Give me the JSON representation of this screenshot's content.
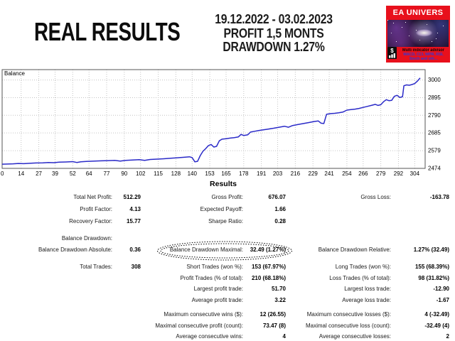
{
  "header": {
    "title": "REAL RESULTS",
    "period_lines": [
      "19.12.2022 - 03.02.2023",
      "PROFIT 1,5 MONTS",
      "DRAWDOWN 1.27%"
    ],
    "logo": {
      "brand": "EA UNIVERS",
      "tagline": "Multi indicator advisor",
      "indicators_line1": "MACD, CCI, WPR, RSI,",
      "indicators_line2": "Stoch and oth...",
      "banner_color": "#e8101c",
      "icon": "dollar-chart-icon"
    }
  },
  "chart_data": {
    "type": "line",
    "title": "Balance",
    "xlabel": "",
    "ylabel": "",
    "xlim": [
      0,
      308
    ],
    "ylim": [
      2474,
      3062
    ],
    "x_ticks": [
      0,
      14,
      27,
      39,
      52,
      64,
      77,
      90,
      102,
      115,
      128,
      140,
      153,
      165,
      178,
      191,
      203,
      216,
      229,
      241,
      254,
      266,
      279,
      292,
      304
    ],
    "y_ticks": [
      2474,
      2579,
      2685,
      2790,
      2895,
      3000
    ],
    "grid": "dotted",
    "legend_position": "none",
    "colors": {
      "line": "#2a2ac8",
      "grid": "#c3c3c3",
      "border": "#555555",
      "plot_bg": "#ffffff"
    },
    "series": [
      {
        "name": "Balance",
        "points": [
          [
            0,
            2499
          ],
          [
            4,
            2500
          ],
          [
            8,
            2501
          ],
          [
            12,
            2503
          ],
          [
            16,
            2502
          ],
          [
            20,
            2504
          ],
          [
            25,
            2506
          ],
          [
            30,
            2507
          ],
          [
            34,
            2509
          ],
          [
            38,
            2508
          ],
          [
            42,
            2511
          ],
          [
            47,
            2512
          ],
          [
            52,
            2514
          ],
          [
            55,
            2509
          ],
          [
            58,
            2513
          ],
          [
            63,
            2516
          ],
          [
            68,
            2517
          ],
          [
            73,
            2519
          ],
          [
            78,
            2520
          ],
          [
            83,
            2522
          ],
          [
            87,
            2517
          ],
          [
            91,
            2522
          ],
          [
            96,
            2524
          ],
          [
            101,
            2526
          ],
          [
            105,
            2522
          ],
          [
            109,
            2527
          ],
          [
            114,
            2529
          ],
          [
            119,
            2531
          ],
          [
            124,
            2534
          ],
          [
            129,
            2537
          ],
          [
            134,
            2540
          ],
          [
            138,
            2543
          ],
          [
            140,
            2538
          ],
          [
            142,
            2513
          ],
          [
            144,
            2516
          ],
          [
            146,
            2550
          ],
          [
            148,
            2576
          ],
          [
            150,
            2592
          ],
          [
            152,
            2610
          ],
          [
            154,
            2616
          ],
          [
            156,
            2601
          ],
          [
            158,
            2605
          ],
          [
            160,
            2638
          ],
          [
            162,
            2648
          ],
          [
            165,
            2651
          ],
          [
            168,
            2654
          ],
          [
            171,
            2657
          ],
          [
            174,
            2661
          ],
          [
            176,
            2676
          ],
          [
            178,
            2670
          ],
          [
            181,
            2674
          ],
          [
            183,
            2690
          ],
          [
            186,
            2695
          ],
          [
            189,
            2699
          ],
          [
            192,
            2703
          ],
          [
            196,
            2708
          ],
          [
            200,
            2713
          ],
          [
            204,
            2719
          ],
          [
            208,
            2725
          ],
          [
            211,
            2719
          ],
          [
            214,
            2729
          ],
          [
            218,
            2735
          ],
          [
            222,
            2741
          ],
          [
            226,
            2747
          ],
          [
            230,
            2753
          ],
          [
            233,
            2756
          ],
          [
            235,
            2743
          ],
          [
            237,
            2741
          ],
          [
            239,
            2796
          ],
          [
            242,
            2800
          ],
          [
            245,
            2802
          ],
          [
            248,
            2805
          ],
          [
            251,
            2809
          ],
          [
            254,
            2821
          ],
          [
            257,
            2824
          ],
          [
            260,
            2827
          ],
          [
            263,
            2831
          ],
          [
            266,
            2837
          ],
          [
            269,
            2843
          ],
          [
            272,
            2849
          ],
          [
            275,
            2855
          ],
          [
            277,
            2849
          ],
          [
            279,
            2853
          ],
          [
            281,
            2871
          ],
          [
            283,
            2883
          ],
          [
            285,
            2877
          ],
          [
            287,
            2879
          ],
          [
            289,
            2903
          ],
          [
            291,
            2909
          ],
          [
            293,
            2896
          ],
          [
            295,
            2901
          ],
          [
            296,
            2966
          ],
          [
            298,
            2971
          ],
          [
            300,
            2969
          ],
          [
            302,
            2973
          ],
          [
            304,
            2979
          ],
          [
            306,
            2994
          ],
          [
            307,
            3003
          ],
          [
            308,
            3012
          ]
        ]
      }
    ]
  },
  "results": {
    "heading": "Results",
    "highlight": {
      "target": "Balance Drawdown Maximal",
      "style": "dotted-ellipse"
    },
    "sections": [
      {
        "id": "summary",
        "rows": [
          [
            "Total Net Profit:",
            "512.29",
            "Gross Profit:",
            "676.07",
            "Gross Loss:",
            "-163.78"
          ],
          [
            "Profit Factor:",
            "4.13",
            "Expected Payoff:",
            "1.66",
            "",
            ""
          ],
          [
            "Recovery Factor:",
            "15.77",
            "Sharpe Ratio:",
            "0.28",
            "",
            ""
          ]
        ]
      },
      {
        "id": "drawdown",
        "rows": [
          [
            "Balance Drawdown:",
            "",
            "",
            "",
            "",
            ""
          ],
          [
            "Balance Drawdown Absolute:",
            "0.36",
            "Balance Drawdown Maximal:",
            "32.49 (1.27%)",
            "Balance Drawdown Relative:",
            "1.27% (32.49)"
          ]
        ]
      },
      {
        "id": "trades",
        "rows": [
          [
            "Total Trades:",
            "308",
            "Short Trades (won %):",
            "153 (67.97%)",
            "Long Trades (won %):",
            "155 (68.39%)"
          ],
          [
            "",
            "",
            "Profit Trades (% of total):",
            "210 (68.18%)",
            "Loss Trades (% of total):",
            "98 (31.82%)"
          ],
          [
            "",
            "",
            "Largest profit trade:",
            "51.70",
            "Largest loss trade:",
            "-12.90"
          ],
          [
            "",
            "",
            "Average profit trade:",
            "3.22",
            "Average loss trade:",
            "-1.67"
          ]
        ]
      },
      {
        "id": "streaks",
        "rows": [
          [
            "",
            "",
            "Maximum consecutive wins ($):",
            "12 (26.55)",
            "Maximum consecutive losses ($):",
            "4 (-32.49)"
          ],
          [
            "",
            "",
            "Maximal consecutive profit (count):",
            "73.47 (8)",
            "Maximal consecutive loss (count):",
            "-32.49 (4)"
          ],
          [
            "",
            "",
            "Average consecutive wins:",
            "4",
            "Average consecutive losses:",
            "2"
          ]
        ]
      }
    ]
  }
}
